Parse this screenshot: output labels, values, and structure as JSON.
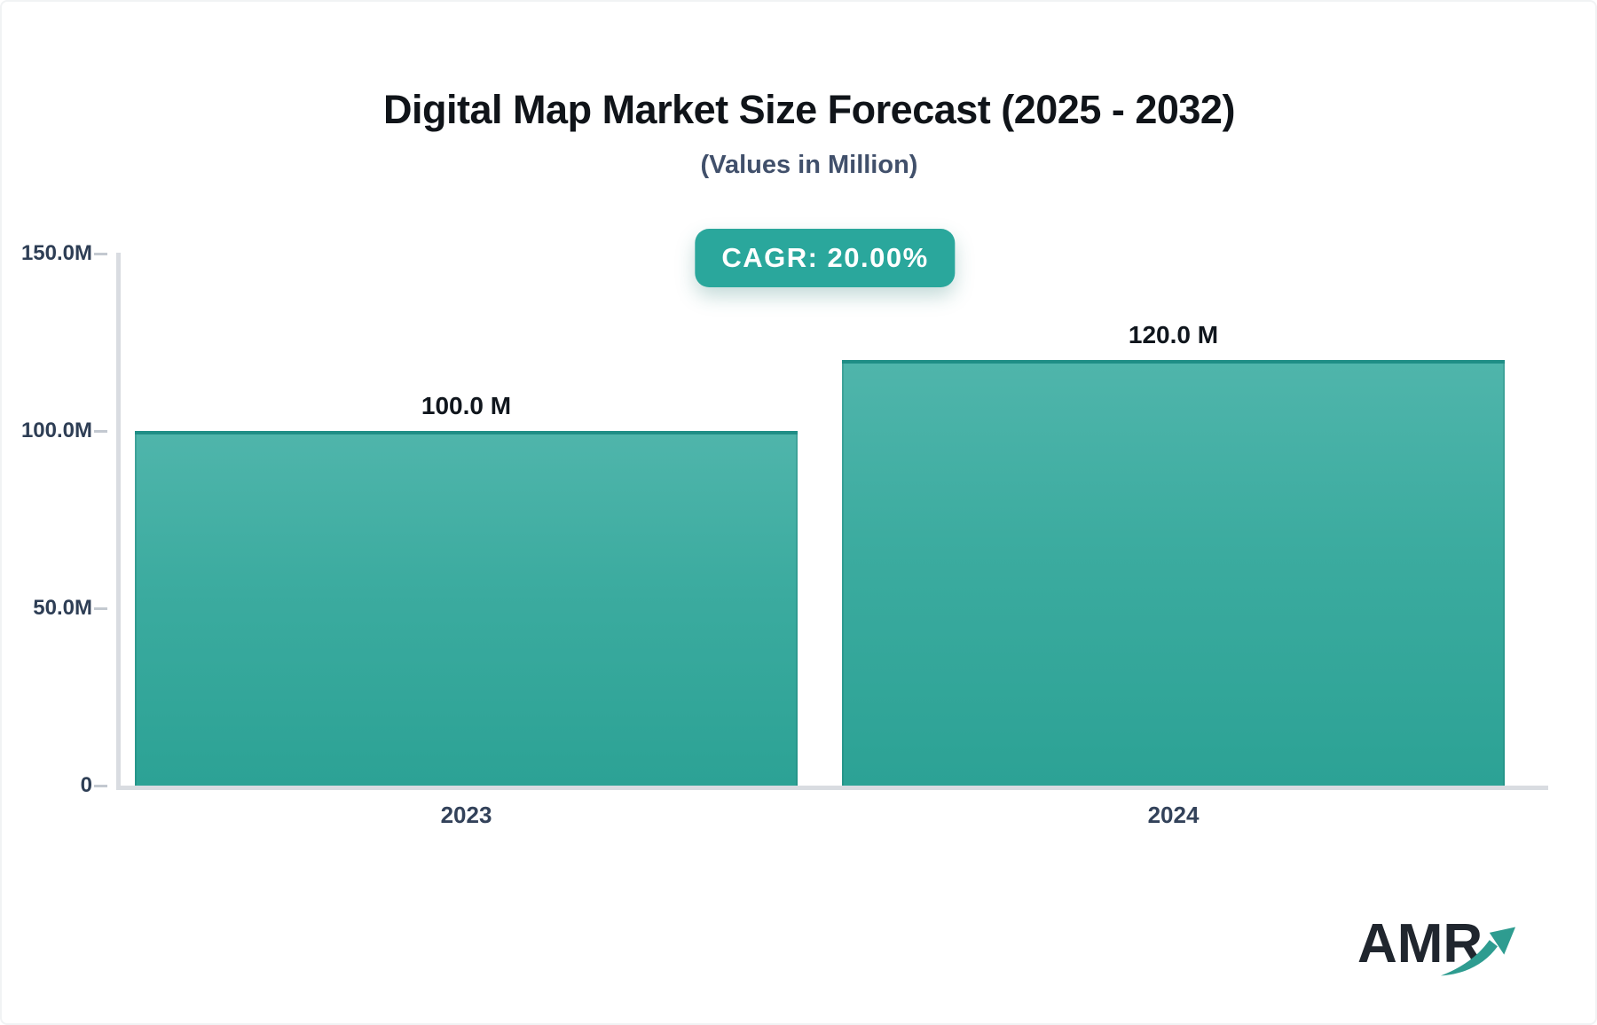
{
  "title": "Digital Map Market Size Forecast (2025 - 2032)",
  "subtitle": "(Values in Million)",
  "badge": {
    "label": "CAGR: 20.00%"
  },
  "logo": {
    "text": "AMR"
  },
  "colors": {
    "bar_top": "#4fb5ab",
    "bar_bottom": "#2ca295",
    "bar_border": "#1f8e86",
    "badge_background": "#2aa79c",
    "axis_line": "#d9dce1",
    "tick_text": "#2e3e55",
    "label_text": "#33425a",
    "title_text": "#101419",
    "subtitle_text": "#41506b"
  },
  "chart_data": {
    "type": "bar",
    "title": "Digital Map Market Size Forecast (2025 - 2032)",
    "subtitle": "(Values in Million)",
    "cagr": "CAGR: 20.00%",
    "unit": "Million",
    "categories": [
      "2023",
      "2024"
    ],
    "values": [
      100.0,
      120.0
    ],
    "bar_labels": [
      "100.0 M",
      "120.0 M"
    ],
    "y_ticks": [
      "0",
      "50.0M",
      "100.0M",
      "150.0M"
    ],
    "y_tick_values": [
      0,
      50,
      100,
      150
    ],
    "ylim": [
      0,
      150
    ],
    "xlabel": "",
    "ylabel": "",
    "grid": false,
    "legend": "none"
  }
}
